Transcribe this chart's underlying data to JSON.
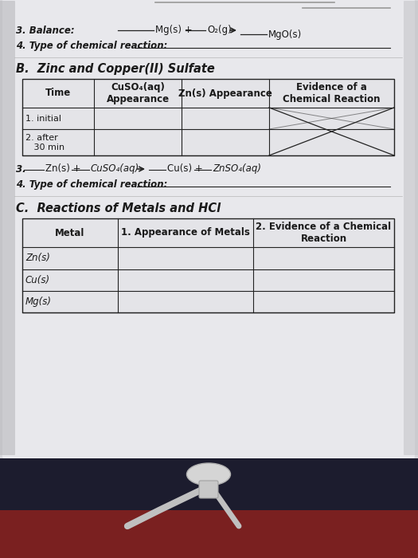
{
  "bg_page": "#d8d8dc",
  "bg_white": "#e8e8ec",
  "text_color": "#1a1a1a",
  "line_color": "#222222",
  "bottom_dark": "#1a1a2e",
  "bottom_red": "#7a2020",
  "cable_color": "#c8c8c8",
  "section3_label": "3. Balance:",
  "balance_eq": "Mg(s) +",
  "balance_o2": "O₂(g)",
  "balance_mgo": "MgO(s)",
  "section4_label": "4. Type of chemical reaction:",
  "sectionB_title": "B.  Zinc and Copper(II) Sulfate",
  "tableB_headers": [
    "Time",
    "CuSO₄(aq)\nAppearance",
    "Zn(s) Appearance",
    "Evidence of a\nChemical Reaction"
  ],
  "tableB_row1": "1. initial",
  "tableB_row2a": "2. after",
  "tableB_row2b": "   30 min",
  "eq3_label": "3.",
  "eq3_zn": "Zn(s) +",
  "eq3_cuso4": "CuSO₄(aq)",
  "eq3_cu": "Cu(s) +",
  "eq3_znso4": "ZnSO₄(aq)",
  "section4B_label": "4. Type of chemical reaction:",
  "sectionC_title": "C.  Reactions of Metals and HCl",
  "tableC_col0": "Metal",
  "tableC_col1": "1. Appearance of Metals",
  "tableC_col2": "2. Evidence of a Chemical\nReaction",
  "tableC_rows": [
    "Zn(s)",
    "Cu(s)",
    "Mg(s)"
  ]
}
